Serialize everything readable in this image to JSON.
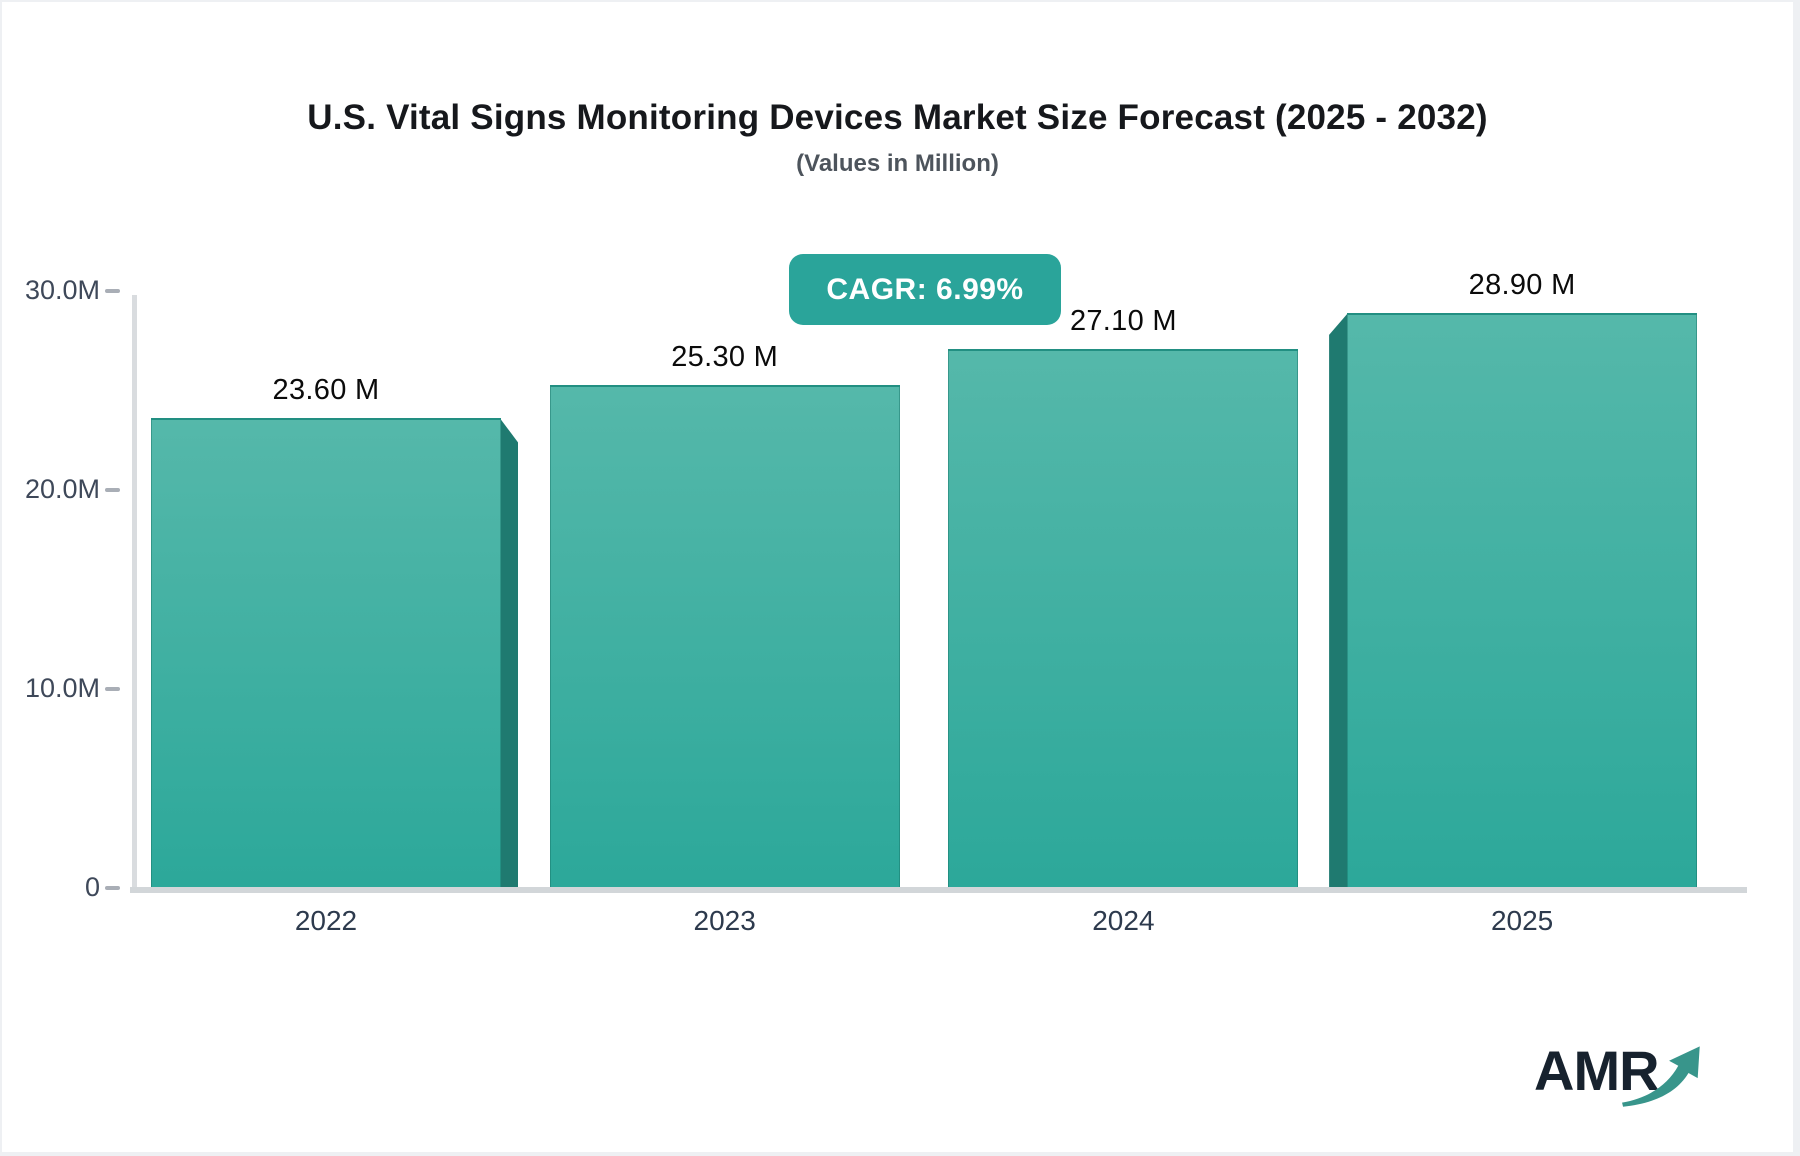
{
  "header": {
    "title": "U.S. Vital Signs Monitoring Devices Market Size Forecast (2025 - 2032)",
    "subtitle": "(Values in Million)"
  },
  "cagr_badge": {
    "label": "CAGR: 6.99%",
    "background_color": "#2aa49a",
    "text_color": "#ffffff"
  },
  "logo": {
    "text": "AMR",
    "text_color": "#17222e",
    "arrow_color": "#38958b"
  },
  "chart_data": {
    "type": "bar",
    "title": "U.S. Vital Signs Monitoring Devices Market Size Forecast (2025 - 2032)",
    "subtitle": "(Values in Million)",
    "categories": [
      "2022",
      "2023",
      "2024",
      "2025"
    ],
    "values": [
      23.6,
      25.3,
      27.1,
      28.9
    ],
    "value_labels": [
      "23.60 M",
      "25.30 M",
      "27.10 M",
      "28.90 M"
    ],
    "cagr_percent": 6.99,
    "xlabel": "",
    "ylabel": "",
    "ylim": [
      0,
      30
    ],
    "yticks": [
      {
        "value": 0,
        "label": "0"
      },
      {
        "value": 10,
        "label": "10.0M"
      },
      {
        "value": 20,
        "label": "20.0M"
      },
      {
        "value": 30,
        "label": "30.0M"
      }
    ],
    "grid": false,
    "legend": "none",
    "bar_colors": {
      "face_top": "#55b8aa",
      "face_bottom": "#2ca89a",
      "side_shadow": "#1f7a70"
    },
    "axis_line_color": "#d5d8db",
    "bar_3d_sides": [
      {
        "side": "right",
        "width": 18,
        "chamfer": 24
      },
      null,
      null,
      {
        "side": "left",
        "width": 19,
        "chamfer": 22
      }
    ]
  }
}
